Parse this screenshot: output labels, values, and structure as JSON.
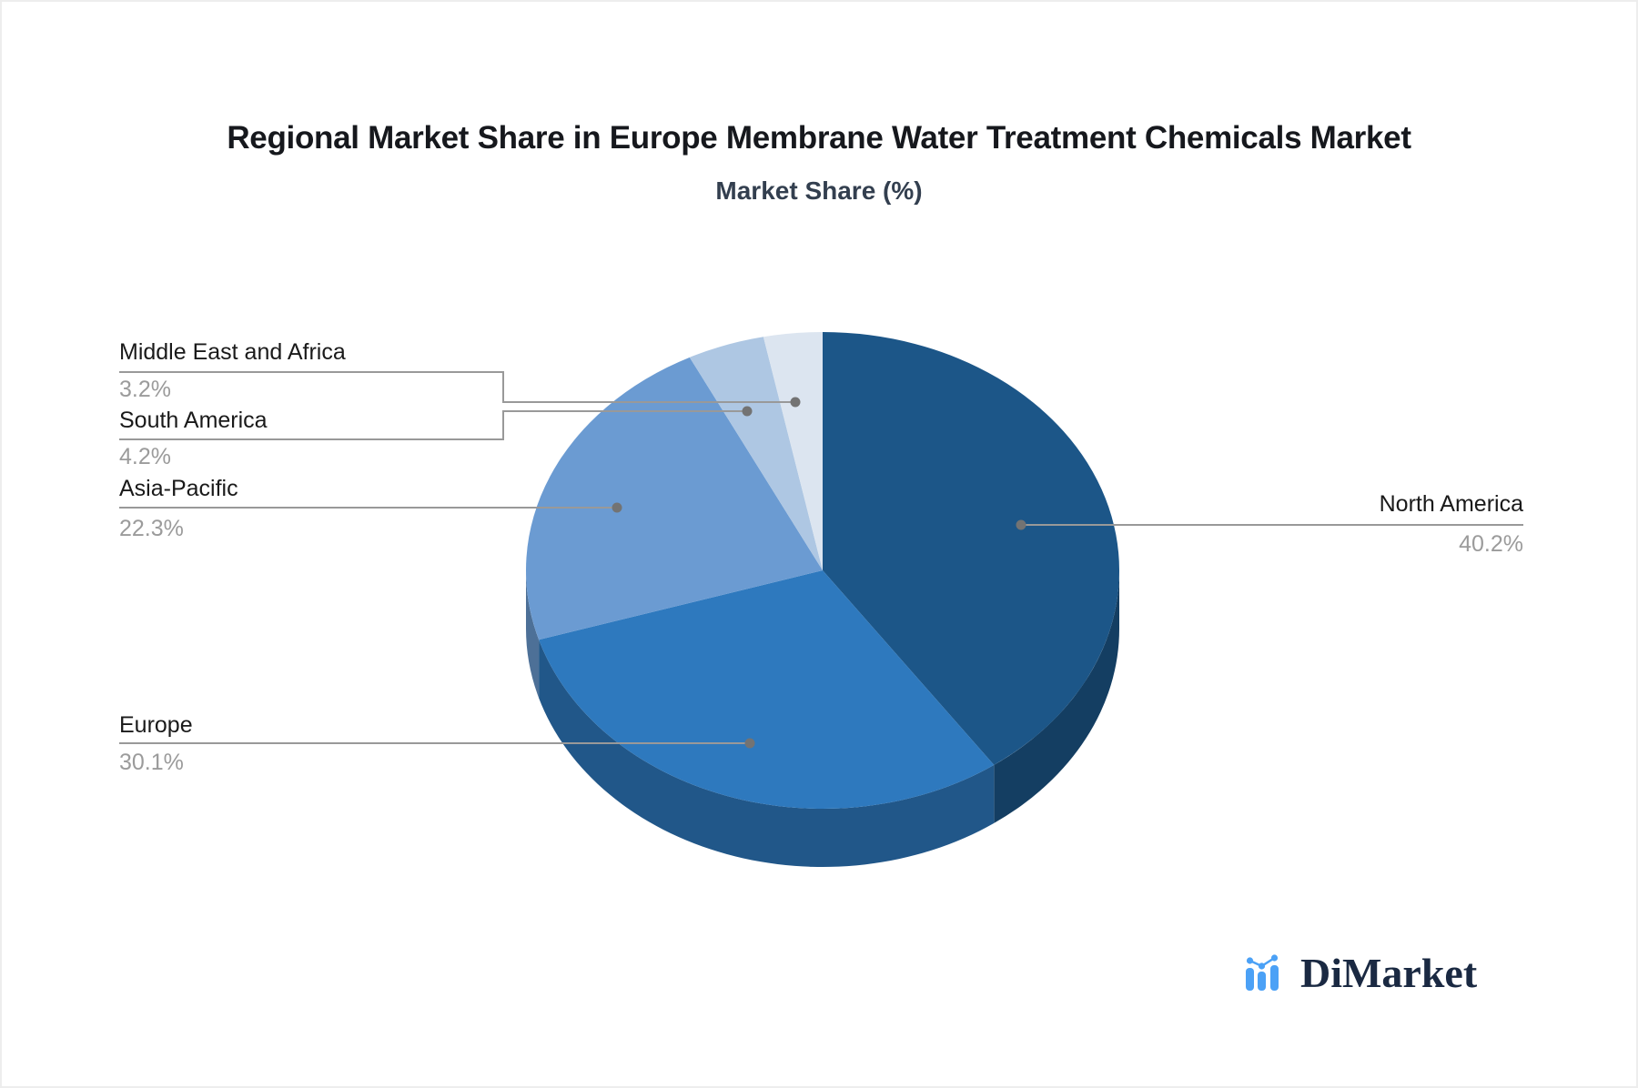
{
  "header": {
    "title": "Regional Market Share in Europe Membrane Water Treatment Chemicals Market",
    "subtitle": "Market Share (%)"
  },
  "chart_data": {
    "type": "pie",
    "title": "Regional Market Share in Europe Membrane Water Treatment Chemicals Market",
    "subtitle": "Market Share (%)",
    "effect": "3d-depth",
    "start_angle_deg": 0,
    "direction": "clockwise",
    "legend": "none",
    "background": "#ffffff",
    "slices": [
      {
        "label": "North America",
        "value": 40.2,
        "display": "40.2%",
        "color": "#1C5688"
      },
      {
        "label": "Europe",
        "value": 30.1,
        "display": "30.1%",
        "color": "#2E79BE"
      },
      {
        "label": "Asia-Pacific",
        "value": 22.3,
        "display": "22.3%",
        "color": "#6B9BD2"
      },
      {
        "label": "South America",
        "value": 4.2,
        "display": "4.2%",
        "color": "#AEC7E3"
      },
      {
        "label": "Middle East and Africa",
        "value": 3.2,
        "display": "3.2%",
        "color": "#DCE5F0"
      }
    ]
  },
  "colors": {
    "leader_line": "#999999",
    "leader_dot": "#737373",
    "label_text": "#1a1a1a",
    "value_text": "#9b9b9b",
    "title_text": "#16181d",
    "subtitle_text": "#333f4f",
    "logo_icon": "#4BA1F6",
    "logo_text": "#1A2942"
  },
  "logo": {
    "text": "DiMarket",
    "icon": "bar-chart-trend-icon"
  }
}
